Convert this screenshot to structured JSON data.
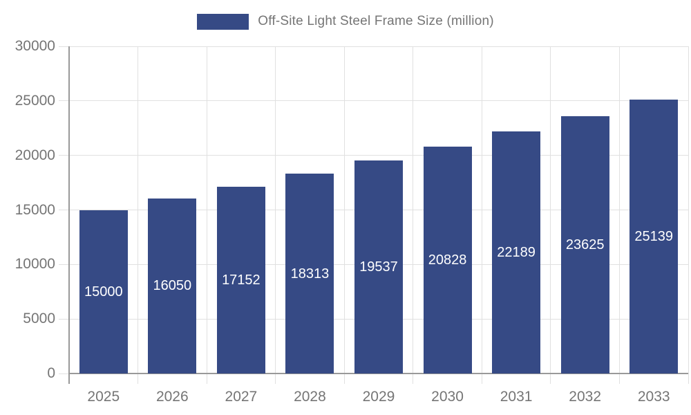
{
  "legend": {
    "label": "Off-Site Light Steel Frame Size (million)"
  },
  "chart_data": {
    "type": "bar",
    "title": "",
    "xlabel": "",
    "ylabel": "",
    "categories": [
      "2025",
      "2026",
      "2027",
      "2028",
      "2029",
      "2030",
      "2031",
      "2032",
      "2033"
    ],
    "series": [
      {
        "name": "Off-Site Light Steel Frame Size (million)",
        "values": [
          15000,
          16050,
          17152,
          18313,
          19537,
          20828,
          22189,
          23625,
          25139
        ]
      }
    ],
    "ylim": [
      0,
      30000
    ],
    "y_ticks": [
      0,
      5000,
      10000,
      15000,
      20000,
      25000,
      30000
    ],
    "grid": true,
    "legend_position": "top",
    "value_labels": "inside-center"
  },
  "colors": {
    "bar": "#364A85",
    "grid": "#e0e0e0",
    "axis": "#999999",
    "tick_text": "#757575",
    "legend_text": "#757575",
    "value_label": "#ffffff",
    "background": "#ffffff"
  }
}
